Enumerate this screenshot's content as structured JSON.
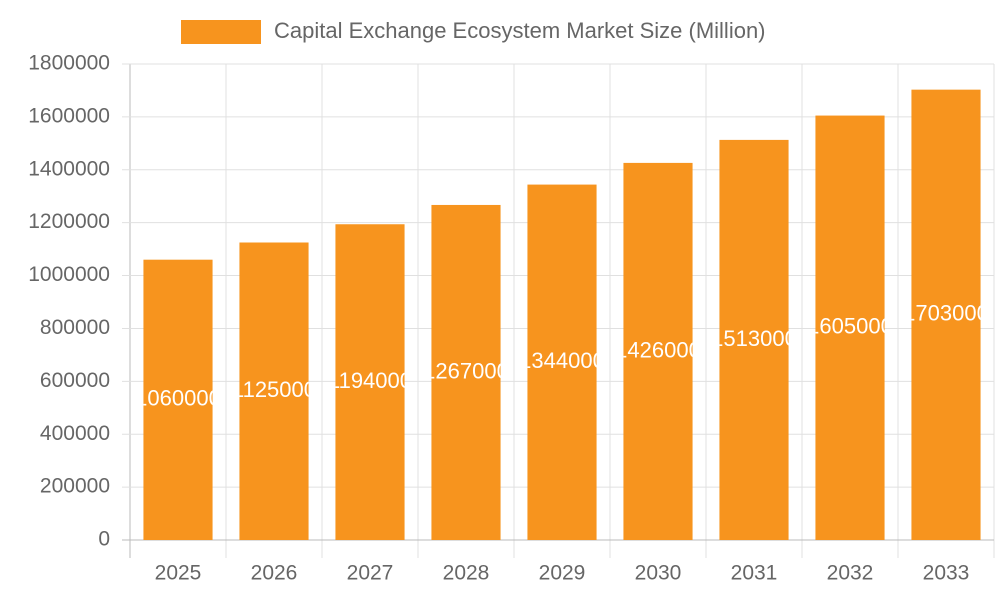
{
  "chart_data": {
    "type": "bar",
    "legend": "Capital Exchange Ecosystem Market Size (Million)",
    "categories": [
      "2025",
      "2026",
      "2027",
      "2028",
      "2029",
      "2030",
      "2031",
      "2032",
      "2033"
    ],
    "values": [
      1060000,
      1125000,
      1194000,
      1267000,
      1344000,
      1426000,
      1513000,
      1605000,
      1703000
    ],
    "color": "#f7941e",
    "ylim": [
      0,
      1800000
    ],
    "yticks": [
      0,
      200000,
      400000,
      600000,
      800000,
      1000000,
      1200000,
      1400000,
      1600000,
      1800000
    ],
    "grid": true
  }
}
